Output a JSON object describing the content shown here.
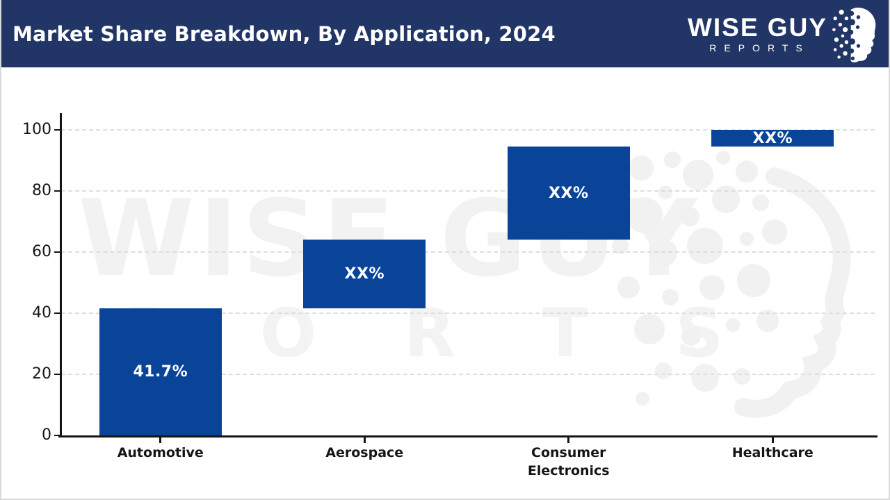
{
  "header": {
    "title": "Market Share Breakdown, By Application, 2024",
    "logo": {
      "line1": "WISE GUY",
      "line2": "REPORTS"
    }
  },
  "watermark": {
    "line1": "WISE GUY",
    "line2": "P O R T S"
  },
  "chart_data": {
    "type": "bar",
    "subtype": "floating-waterfall",
    "title": "Market Share Breakdown, By Application, 2024",
    "categories": [
      "Automotive",
      "Aerospace",
      "Consumer\nElectronics",
      "Healthcare"
    ],
    "segments": [
      {
        "category": "Automotive",
        "start": 0,
        "end": 41.7,
        "label": "41.7%"
      },
      {
        "category": "Aerospace",
        "start": 41.7,
        "end": 64.0,
        "label": "XX%"
      },
      {
        "category": "Consumer Electronics",
        "start": 64.0,
        "end": 94.5,
        "label": "XX%"
      },
      {
        "category": "Healthcare",
        "start": 94.5,
        "end": 100.0,
        "label": "XX%"
      }
    ],
    "ylim": [
      0,
      100
    ],
    "yticks": [
      0,
      20,
      40,
      60,
      80,
      100
    ],
    "xlabel": "",
    "ylabel": "",
    "grid": "horizontal-dashed",
    "legend": "none",
    "bar_color": "#0a4499",
    "value_label_color": "#ffffff"
  },
  "colors": {
    "header_bg": "#213566",
    "bar": "#0a4499",
    "grid": "#dedede",
    "axis": "#151515",
    "watermark": "#f2f2f2"
  }
}
